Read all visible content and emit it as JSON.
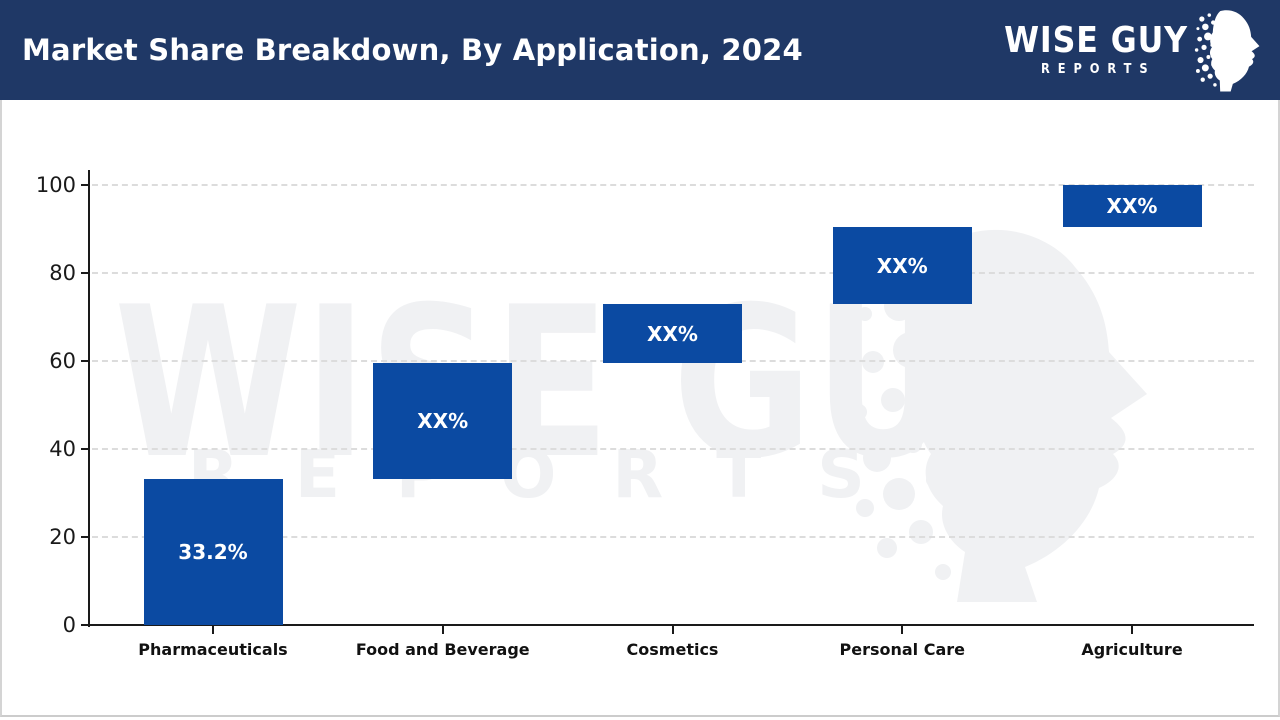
{
  "header": {
    "title": "Market Share Breakdown, By Application, 2024"
  },
  "logo": {
    "line1": "WISE GUY",
    "line2": "REPORTS"
  },
  "watermark": {
    "line1": "WISE GUY",
    "line2": "REPORTS"
  },
  "theme": {
    "header_navy": "#1f3866",
    "bar_blue": "#0b4aa2",
    "axis_color": "#1a1a1a",
    "grid_color": "#dcdcdc",
    "watermark_gray": "#f0f1f3",
    "bar_label_white": "#ffffff"
  },
  "chart_data": {
    "type": "bar",
    "subtype": "waterfall",
    "title": "Market Share Breakdown, By Application, 2024",
    "categories": [
      "Pharmaceuticals",
      "Food and Beverage",
      "Cosmetics",
      "Personal Care",
      "Agriculture"
    ],
    "segments": [
      {
        "category": "Pharmaceuticals",
        "start": 0,
        "end": 33.2,
        "label": "33.2%"
      },
      {
        "category": "Food and Beverage",
        "start": 33.2,
        "end": 59.5,
        "label": "XX%"
      },
      {
        "category": "Cosmetics",
        "start": 59.5,
        "end": 72.8,
        "label": "XX%"
      },
      {
        "category": "Personal Care",
        "start": 72.8,
        "end": 90.3,
        "label": "XX%"
      },
      {
        "category": "Agriculture",
        "start": 90.3,
        "end": 100,
        "label": "XX%"
      }
    ],
    "xlabel": "",
    "ylabel": "",
    "yticks": [
      0,
      20,
      40,
      60,
      80,
      100
    ],
    "ylim": [
      0,
      103.4
    ],
    "grid": "horizontal-dashed",
    "legend": "none"
  }
}
